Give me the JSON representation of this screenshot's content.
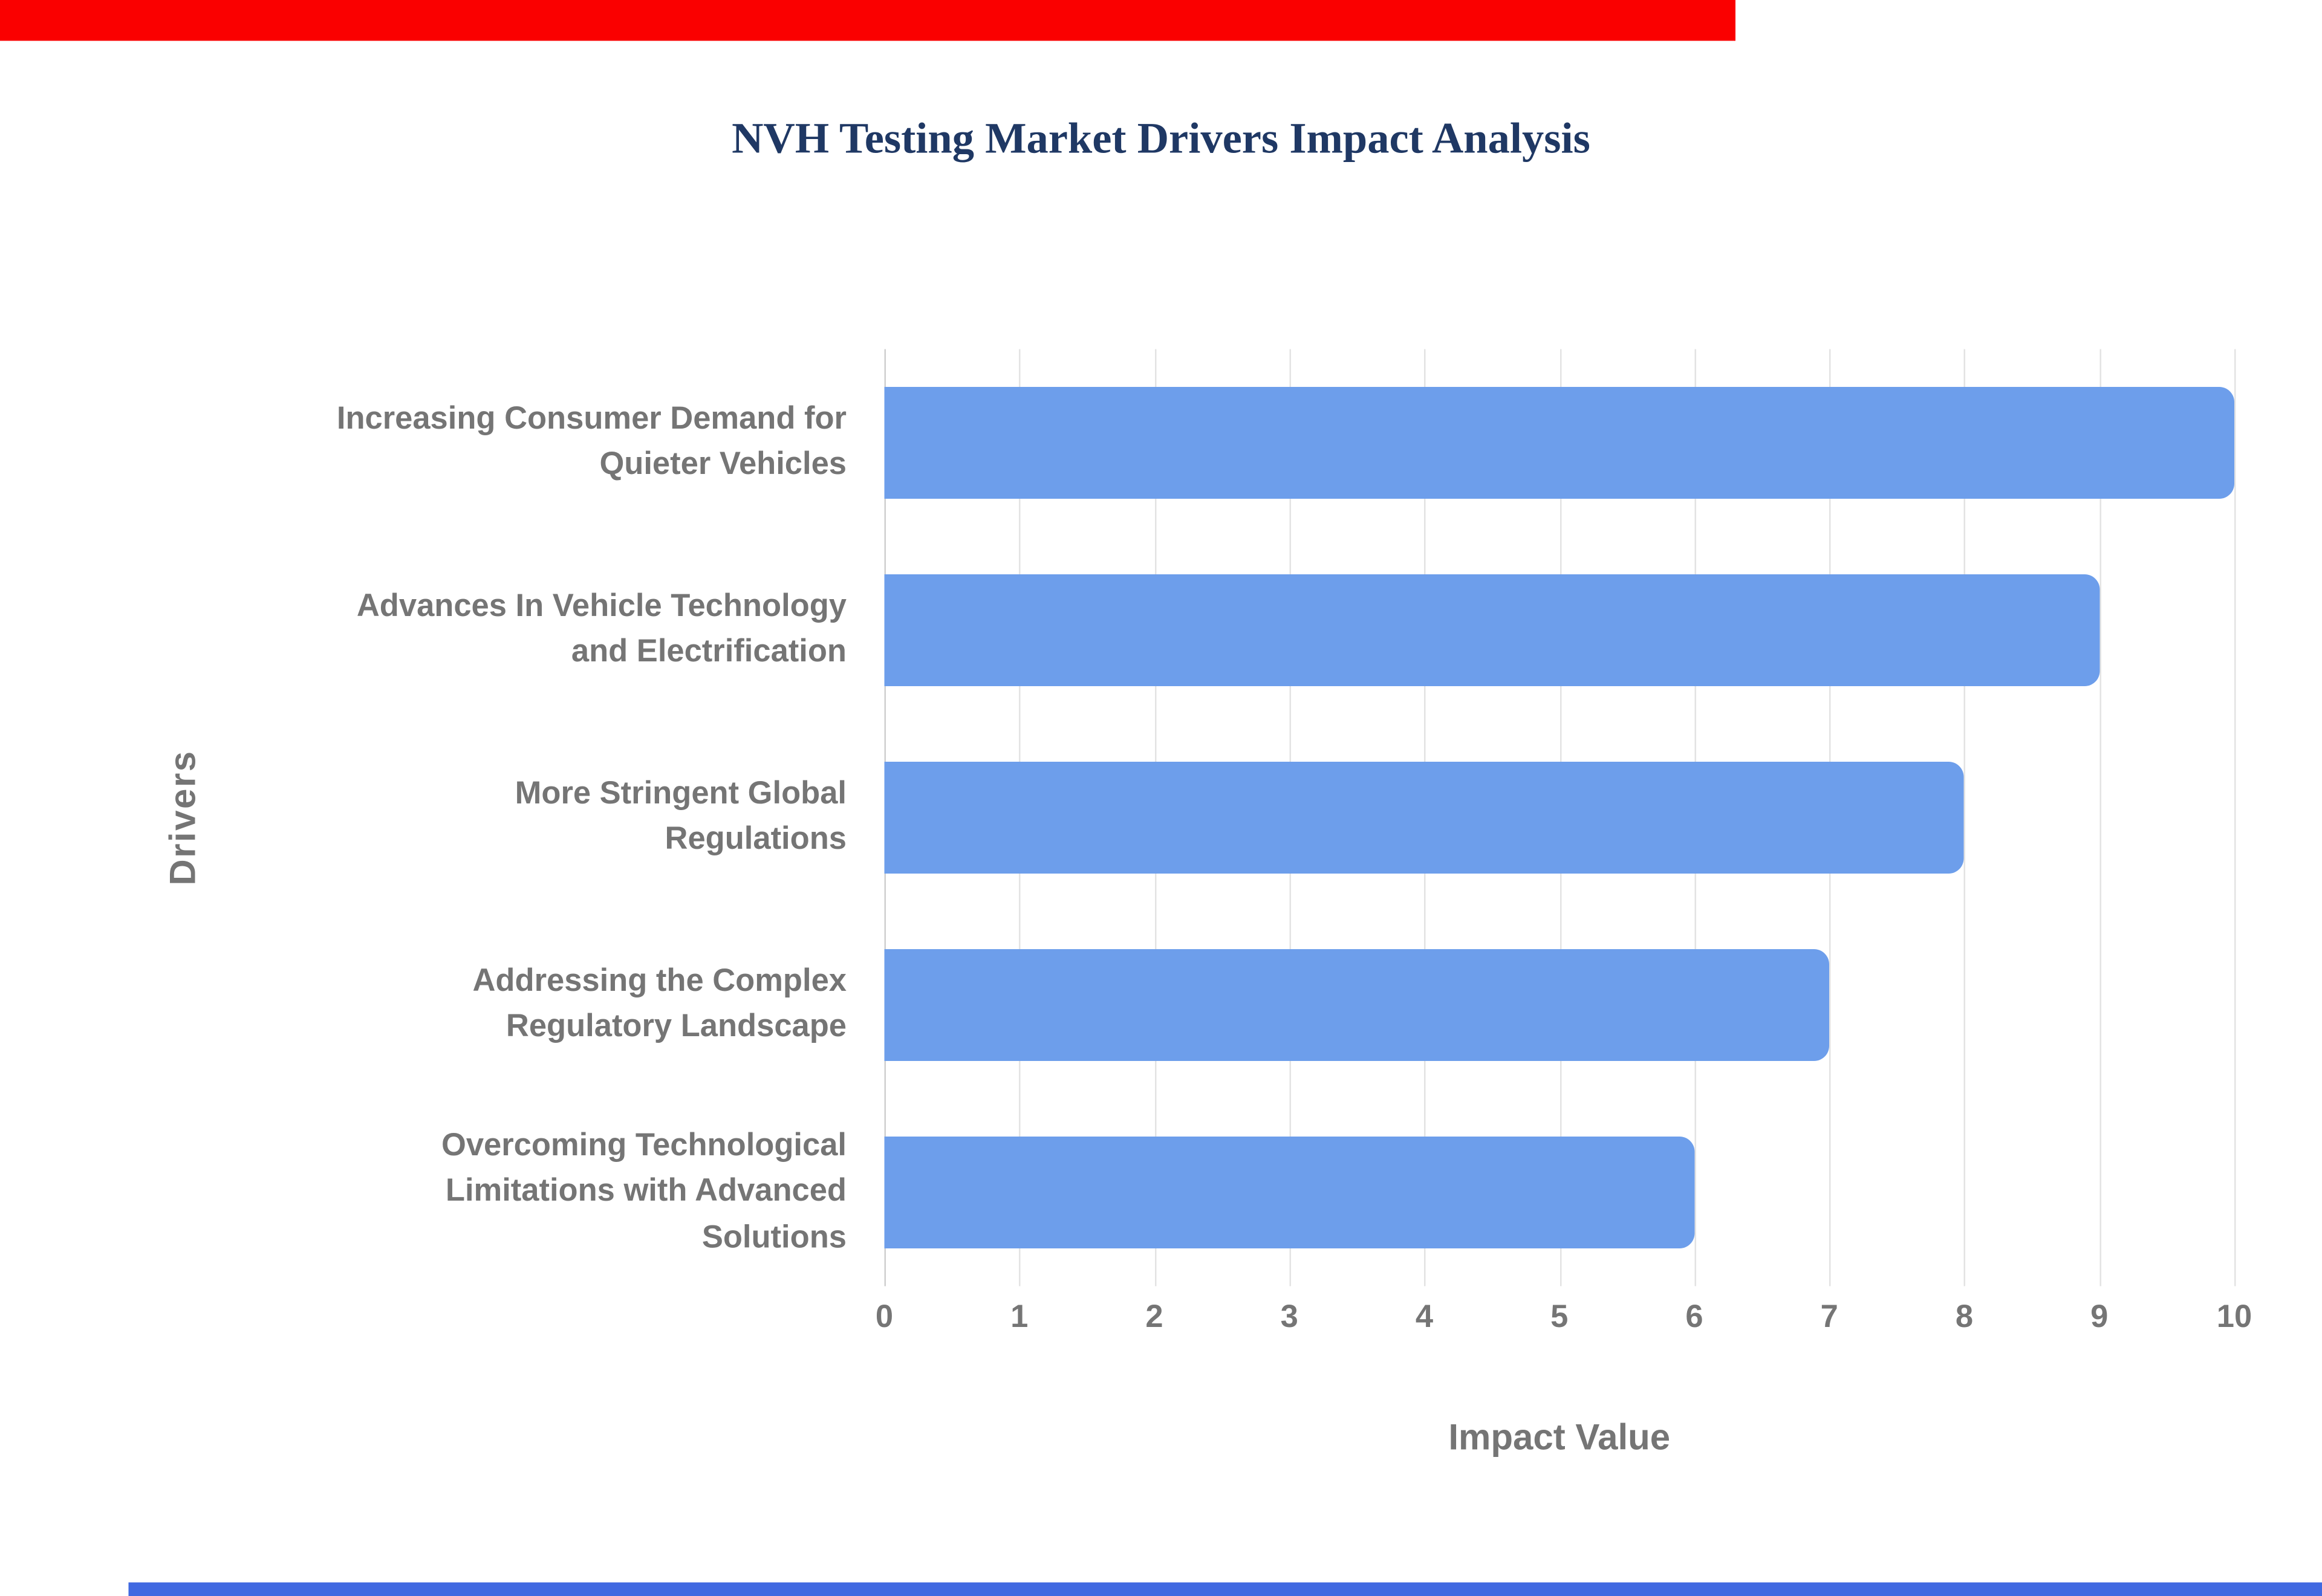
{
  "page": {
    "top_strip_color": "#fa0000",
    "bottom_strip_color": "#4169e1"
  },
  "chart_data": {
    "type": "bar",
    "orientation": "horizontal",
    "title": "NVH Testing Market Drivers Impact Analysis",
    "xlabel": "Impact Value",
    "ylabel": "Drivers",
    "categories": [
      "Increasing Consumer Demand for\nQuieter Vehicles",
      "Advances In Vehicle Technology\nand Electrification",
      "More Stringent Global\nRegulations",
      "Addressing the Complex\nRegulatory Landscape",
      "Overcoming Technological\nLimitations with Advanced\nSolutions"
    ],
    "values": [
      10,
      9,
      8,
      7,
      6
    ],
    "xlim": [
      0,
      10
    ],
    "xticks": [
      0,
      1,
      2,
      3,
      4,
      5,
      6,
      7,
      8,
      9,
      10
    ],
    "grid": true,
    "legend": "none",
    "bar_color": "#6d9eeb",
    "grid_color": "#e3e3e3",
    "axis_text_color": "#757575",
    "title_color": "#1f3864"
  }
}
